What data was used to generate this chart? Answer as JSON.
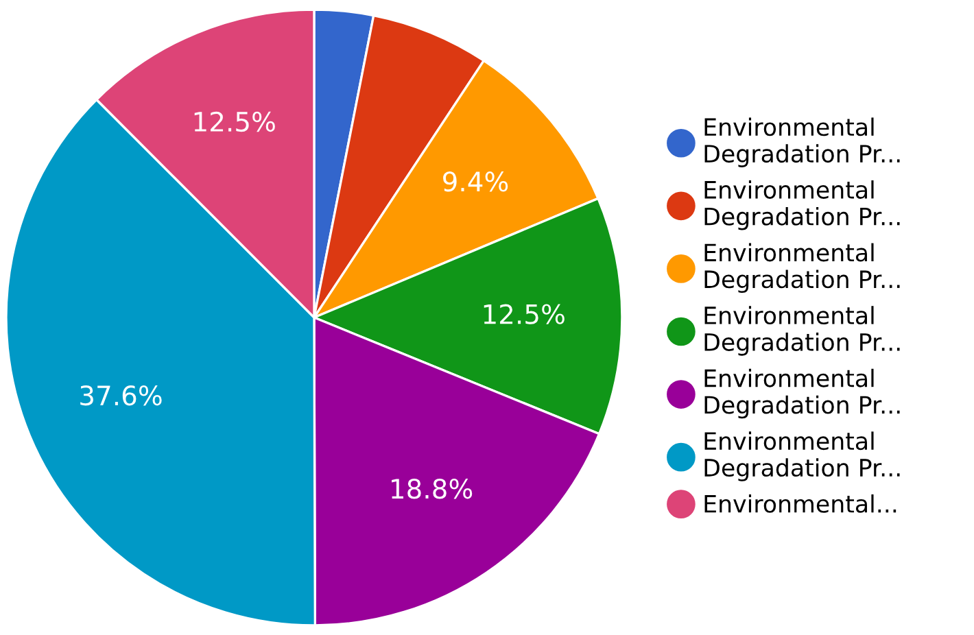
{
  "chart_data": {
    "type": "pie",
    "categories": [
      "Environmental\nDegradation Pr...",
      "Environmental\nDegradation Pr...",
      "Environmental\nDegradation Pr...",
      "Environmental\nDegradation Pr...",
      "Environmental\nDegradation Pr...",
      "Environmental\nDegradation Pr...",
      "Environmental..."
    ],
    "values": [
      3.1,
      6.2,
      9.4,
      12.5,
      18.8,
      37.6,
      12.5
    ],
    "value_labels": [
      null,
      null,
      "9.4%",
      "12.5%",
      "18.8%",
      "37.6%",
      "12.5%"
    ],
    "colors": [
      "#3366cc",
      "#dc3912",
      "#ff9900",
      "#109618",
      "#990099",
      "#0099c6",
      "#dd4477"
    ],
    "legend": "right"
  }
}
